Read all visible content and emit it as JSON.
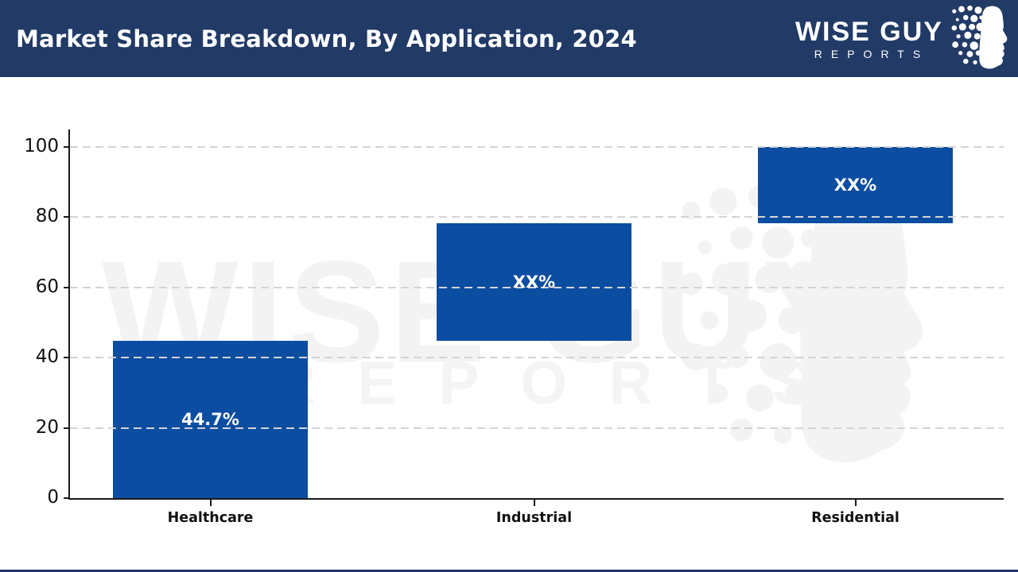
{
  "header": {
    "title": "Market Share Breakdown, By Application, 2024",
    "logo": {
      "line1": "WISE GUY",
      "line2": "REPORTS"
    }
  },
  "watermark": {
    "line1": "WISE GUY",
    "line2": "REPORTS"
  },
  "colors": {
    "header_bg": "#213a66",
    "bar_blue": "#0b4da1",
    "grid_gray": "#d4d4d4",
    "axis_black": "#1a1a1a",
    "watermark_gray": "#f3f3f3",
    "title_text": "#ffffff"
  },
  "chart_data": {
    "type": "bar",
    "variant": "floating-waterfall",
    "title": "Market Share Breakdown, By Application, 2024",
    "categories": [
      "Healthcare",
      "Industrial",
      "Residential"
    ],
    "segments": [
      {
        "category": "Healthcare",
        "start": 0,
        "end": 44.7,
        "label": "44.7%"
      },
      {
        "category": "Industrial",
        "start": 44.7,
        "end": 78.3,
        "label": "XX%"
      },
      {
        "category": "Residential",
        "start": 78.3,
        "end": 100,
        "label": "XX%"
      }
    ],
    "xlabel": "",
    "ylabel": "",
    "ylim": [
      0,
      100
    ],
    "yticks": [
      0,
      20,
      40,
      60,
      80,
      100
    ],
    "grid": {
      "axis": "y",
      "style": "dashed"
    },
    "legend": null
  }
}
